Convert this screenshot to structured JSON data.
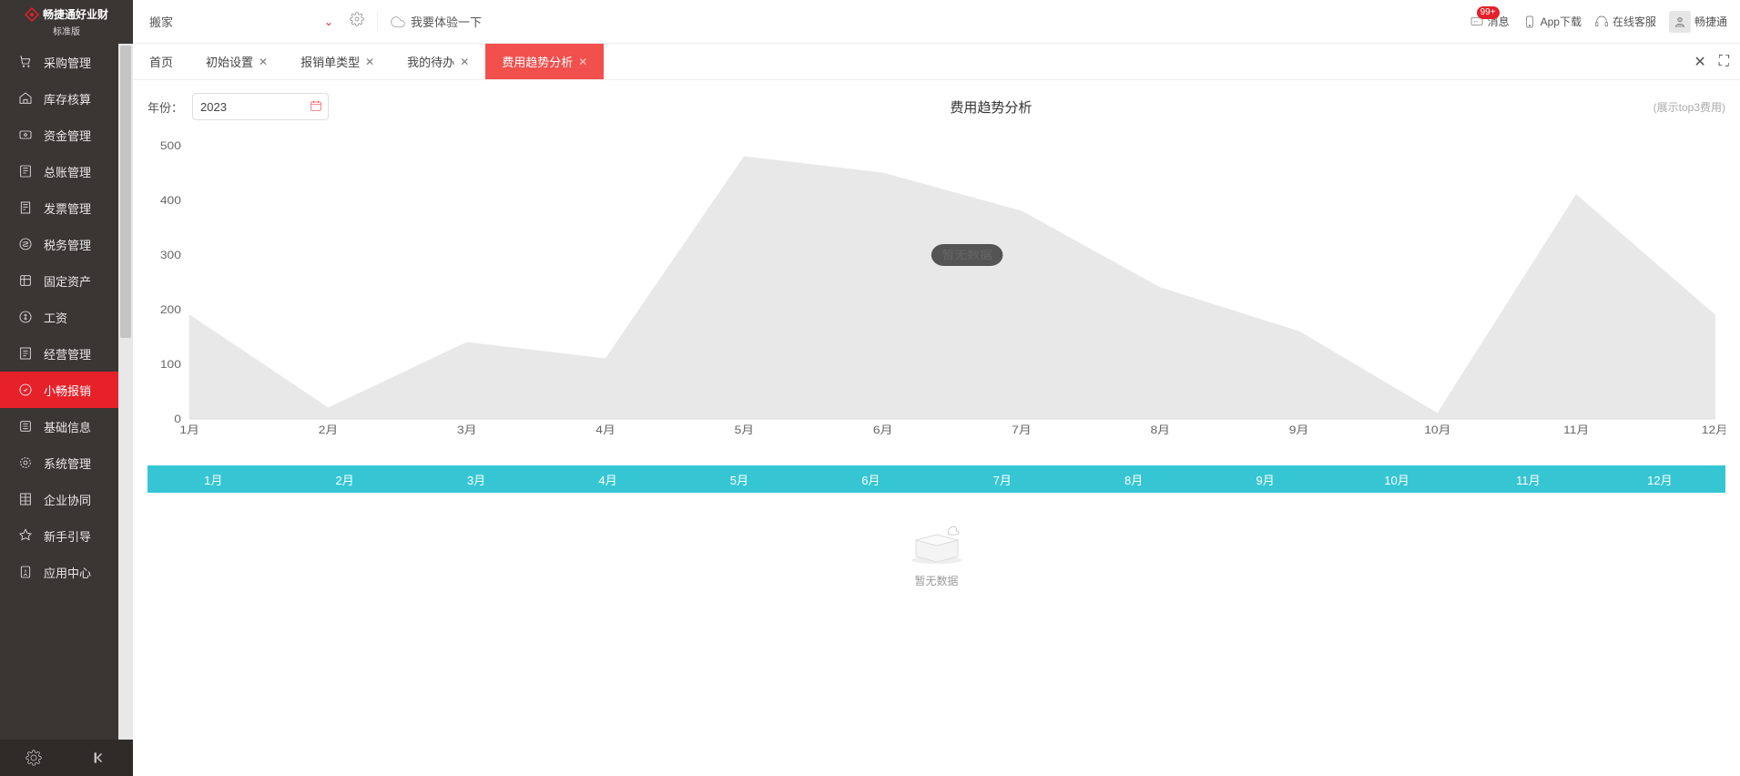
{
  "brand": {
    "name": "畅捷通好业财",
    "edition": "标准版"
  },
  "sidebar": {
    "items": [
      {
        "label": "采购管理",
        "icon": "cart"
      },
      {
        "label": "库存核算",
        "icon": "house"
      },
      {
        "label": "资金管理",
        "icon": "money"
      },
      {
        "label": "总账管理",
        "icon": "ledger"
      },
      {
        "label": "发票管理",
        "icon": "invoice"
      },
      {
        "label": "税务管理",
        "icon": "tax"
      },
      {
        "label": "固定资产",
        "icon": "asset"
      },
      {
        "label": "工资",
        "icon": "wage"
      },
      {
        "label": "经营管理",
        "icon": "report"
      },
      {
        "label": "小畅报销",
        "icon": "reimburse",
        "active": true
      },
      {
        "label": "基础信息",
        "icon": "info"
      },
      {
        "label": "系统管理",
        "icon": "system"
      },
      {
        "label": "企业协同",
        "icon": "enterprise"
      },
      {
        "label": "新手引导",
        "icon": "guide"
      },
      {
        "label": "应用中心",
        "icon": "appcenter"
      }
    ]
  },
  "topbar": {
    "selector_value": "搬家",
    "try_label": "我要体验一下",
    "msg_label": "消息",
    "msg_badge": "99+",
    "app_label": "App下载",
    "cs_label": "在线客服",
    "user_name": "畅捷通"
  },
  "tabs": {
    "items": [
      {
        "label": "首页",
        "closable": false
      },
      {
        "label": "初始设置",
        "closable": true
      },
      {
        "label": "报销单类型",
        "closable": true
      },
      {
        "label": "我的待办",
        "closable": true
      },
      {
        "label": "费用趋势分析",
        "closable": true,
        "active": true
      }
    ]
  },
  "filter": {
    "year_label": "年份：",
    "year_value": "2023"
  },
  "chart": {
    "title": "费用趋势分析",
    "note": "(展示top3费用)",
    "type": "area",
    "tooltip": "暂无数据",
    "ylim": [
      0,
      500
    ],
    "ytick_step": 100,
    "y_ticks": [
      "0",
      "100",
      "200",
      "300",
      "400",
      "500"
    ],
    "x_labels": [
      "1月",
      "2月",
      "3月",
      "4月",
      "5月",
      "6月",
      "7月",
      "8月",
      "9月",
      "10月",
      "11月",
      "12月"
    ],
    "values": [
      190,
      20,
      140,
      110,
      480,
      450,
      380,
      240,
      160,
      10,
      410,
      190
    ],
    "area_color": "#e8e8e8",
    "axis_color": "#dddddd",
    "bg_color": "#ffffff",
    "label_fontsize": 12
  },
  "month_band": {
    "bg_color": "#36c6d3",
    "labels": [
      "1月",
      "2月",
      "3月",
      "4月",
      "5月",
      "6月",
      "7月",
      "8月",
      "9月",
      "10月",
      "11月",
      "12月"
    ]
  },
  "nodata_text": "暂无数据"
}
